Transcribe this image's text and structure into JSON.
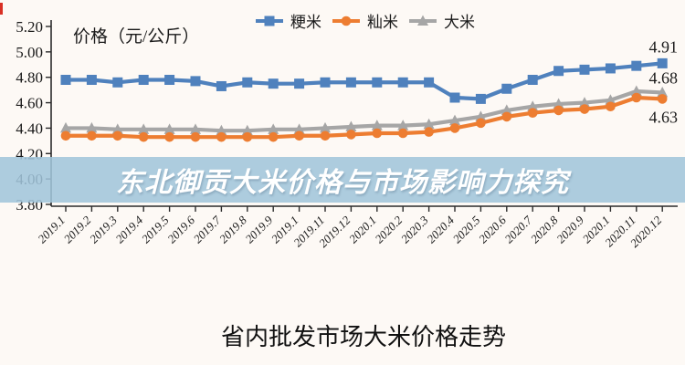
{
  "banner": {
    "title": "东北御贡大米价格与市场影响力探究",
    "bg_color": "#a1c4da",
    "text_color": "#ffffff"
  },
  "caption": {
    "text": "省内批发市场大米价格走势"
  },
  "chart_data": {
    "type": "line",
    "title": "省内批发市场大米价格走势",
    "ylabel": "价格（元/公斤）",
    "xlabel": "",
    "ylim": [
      3.8,
      5.2
    ],
    "yticks": [
      "5.20",
      "5.00",
      "4.80",
      "4.60",
      "4.40",
      "4.20",
      "4.00",
      "3.80"
    ],
    "grid": false,
    "legend_position": "top",
    "categories": [
      "2019.1",
      "2019.2",
      "2019.3",
      "2019.4",
      "2019.5",
      "2019.6",
      "2019.7",
      "2019.8",
      "2019.9",
      "2019.1",
      "2019.11",
      "2019.12",
      "2020.1",
      "2020.2",
      "2020.3",
      "2020.4",
      "2020.5",
      "2020.6",
      "2020.7",
      "2020.8",
      "2020.9",
      "2020.1",
      "2020.11",
      "2020.12"
    ],
    "series": [
      {
        "name": "粳米",
        "color": "#4f81bd",
        "marker": "square",
        "end_label": "4.91",
        "label_dy": -12,
        "values": [
          4.78,
          4.78,
          4.76,
          4.78,
          4.78,
          4.77,
          4.73,
          4.76,
          4.75,
          4.75,
          4.76,
          4.76,
          4.76,
          4.76,
          4.76,
          4.64,
          4.63,
          4.71,
          4.78,
          4.85,
          4.86,
          4.87,
          4.89,
          4.91
        ]
      },
      {
        "name": "籼米",
        "color": "#ed7d31",
        "marker": "circle",
        "end_label": "4.63",
        "label_dy": 26,
        "values": [
          4.34,
          4.34,
          4.34,
          4.33,
          4.33,
          4.33,
          4.33,
          4.33,
          4.33,
          4.34,
          4.34,
          4.35,
          4.36,
          4.36,
          4.37,
          4.4,
          4.44,
          4.49,
          4.52,
          4.54,
          4.55,
          4.57,
          4.64,
          4.63
        ]
      },
      {
        "name": "大米",
        "color": "#a6a6a6",
        "marker": "triangle",
        "end_label": "4.68",
        "label_dy": -10,
        "values": [
          4.4,
          4.4,
          4.39,
          4.39,
          4.39,
          4.39,
          4.38,
          4.38,
          4.39,
          4.39,
          4.4,
          4.41,
          4.42,
          4.42,
          4.43,
          4.46,
          4.49,
          4.54,
          4.57,
          4.59,
          4.6,
          4.62,
          4.69,
          4.68
        ]
      }
    ]
  }
}
